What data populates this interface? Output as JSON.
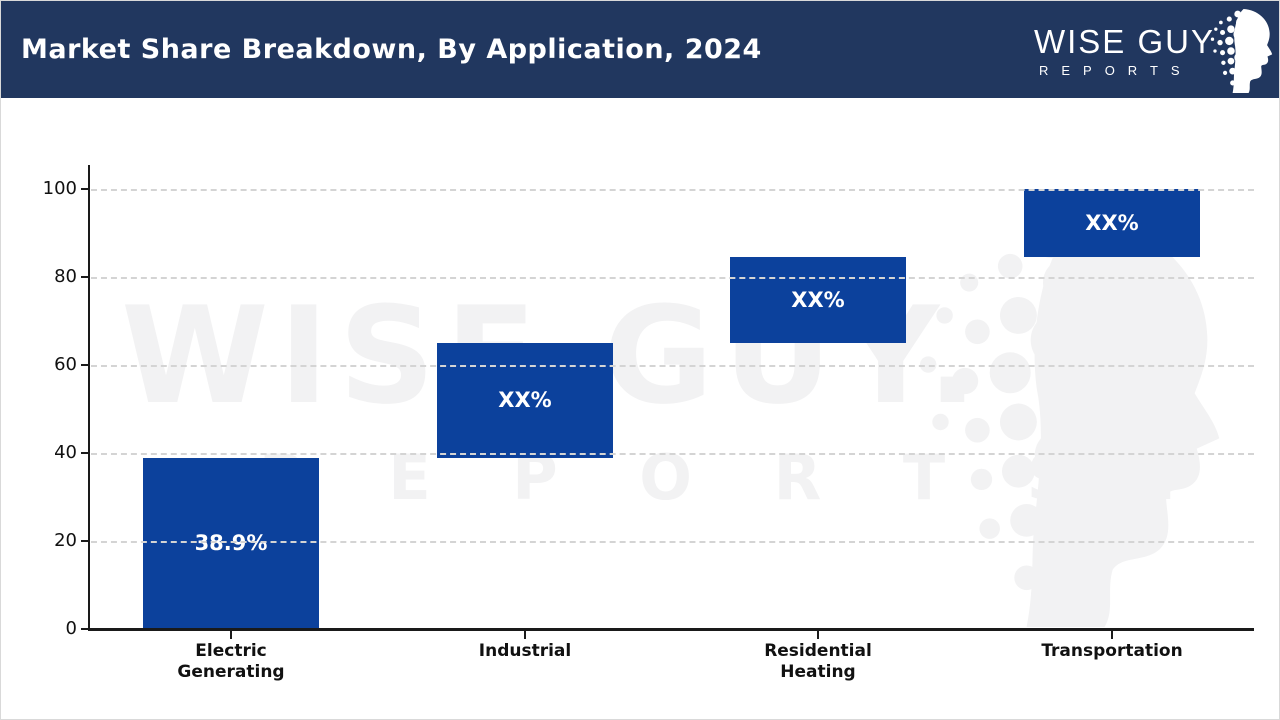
{
  "header": {
    "title": "Market Share Breakdown, By Application, 2024",
    "logo_line1": "WISE GUY",
    "logo_line2": "REPORTS"
  },
  "watermark": {
    "line1": "WISE GUY.",
    "line2": "R E P O R T S ."
  },
  "colors": {
    "header_bg": "#21375f",
    "bar": "#0c419c",
    "axis": "#1a1a1a",
    "gridline": "#d4d4d4",
    "watermark": "#f2f2f3",
    "value_label": "#ffffff"
  },
  "chart_data": {
    "type": "bar",
    "subtype": "waterfall",
    "title": "Market Share Breakdown, By Application, 2024",
    "categories": [
      "Electric Generating",
      "Industrial",
      "Residential Heating",
      "Transportation"
    ],
    "segments": [
      {
        "category": "Electric Generating",
        "start": 0,
        "end": 38.9,
        "value": 38.9,
        "label": "38.9%"
      },
      {
        "category": "Industrial",
        "start": 38.9,
        "end": 65.0,
        "value": 26.1,
        "label": "XX%"
      },
      {
        "category": "Residential Heating",
        "start": 65.0,
        "end": 84.5,
        "value": 19.5,
        "label": "XX%"
      },
      {
        "category": "Transportation",
        "start": 84.5,
        "end": 100.0,
        "value": 15.5,
        "label": "XX%"
      }
    ],
    "xlabel": "",
    "ylabel": "",
    "ylim": [
      0,
      100
    ],
    "yticks": [
      0,
      20,
      40,
      60,
      80,
      100
    ],
    "grid": "dashed-horizontal",
    "legend": null
  }
}
